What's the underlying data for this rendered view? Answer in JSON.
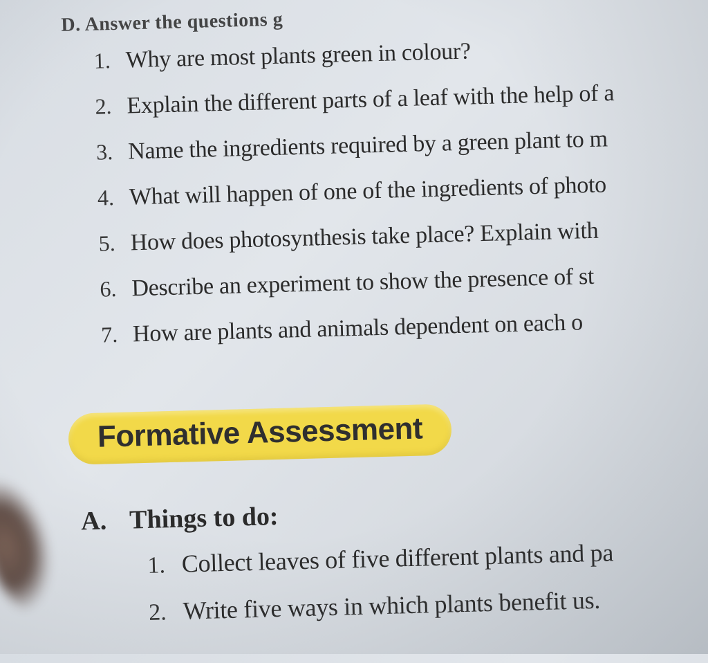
{
  "header_partial": "D. Answer the questions g",
  "questions": [
    {
      "num": "1.",
      "text": "Why are most plants green in colour?"
    },
    {
      "num": "2.",
      "text": "Explain the different parts of a leaf with the help of a"
    },
    {
      "num": "3.",
      "text": "Name the ingredients required by a green plant to m"
    },
    {
      "num": "4.",
      "text": "What will happen of one of the ingredients of photo"
    },
    {
      "num": "5.",
      "text": "How does photosynthesis take place? Explain with"
    },
    {
      "num": "6.",
      "text": "Describe an experiment to show the presence of st"
    },
    {
      "num": "7.",
      "text": "How are plants and animals dependent on each o"
    }
  ],
  "formative_heading": "Formative Assessment",
  "section": {
    "letter": "A.",
    "title": "Things to do:",
    "items": [
      {
        "num": "1.",
        "text": "Collect leaves of five different plants and pa"
      },
      {
        "num": "2.",
        "text": "Write five ways in which plants benefit us."
      }
    ]
  },
  "colors": {
    "highlight_bg": "#f2d949",
    "text": "#2b2b2b",
    "page_bg": "#e2e6eb"
  },
  "typography": {
    "question_fontsize": 34,
    "heading_fontsize": 44,
    "section_fontsize": 38,
    "todo_fontsize": 36
  }
}
